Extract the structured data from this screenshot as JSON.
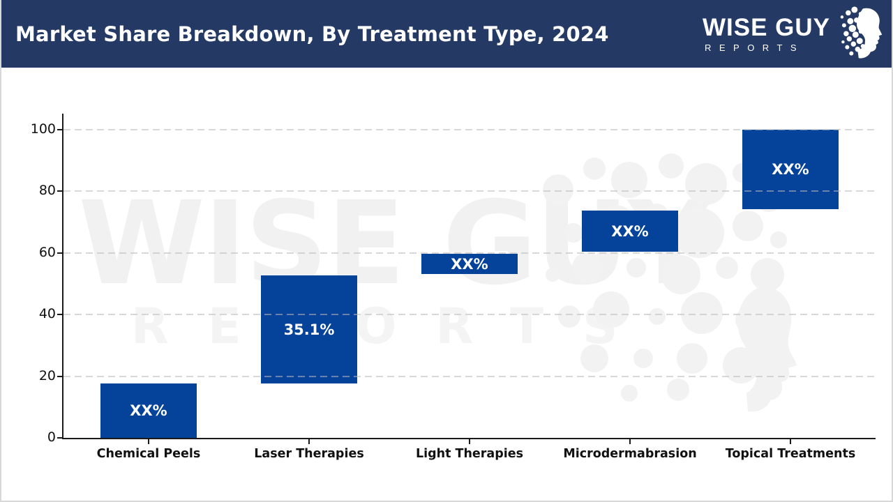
{
  "header": {
    "title": "Market Share Breakdown, By Treatment Type, 2024",
    "logo_line1": "WISE GUY",
    "logo_line2": "REPORTS"
  },
  "watermark": {
    "line1": "WISE GUY",
    "line2": "REPORTS"
  },
  "colors": {
    "header_bg": "#243a64",
    "bar": "#05439b",
    "axis": "#1a1a1a",
    "grid": "#d9d9d9",
    "watermark": "#f1f1f1",
    "bar_label": "#ffffff"
  },
  "chart_data": {
    "type": "bar",
    "subtype": "waterfall",
    "title": "Market Share Breakdown, By Treatment Type, 2024",
    "categories": [
      "Chemical Peels",
      "Laser Therapies",
      "Light Therapies",
      "Microdermabrasion",
      "Topical Treatments"
    ],
    "bars": [
      {
        "category": "Chemical Peels",
        "start": 0,
        "end": 17.6,
        "label": "XX%"
      },
      {
        "category": "Laser Therapies",
        "start": 17.6,
        "end": 52.7,
        "label": "35.1%"
      },
      {
        "category": "Light Therapies",
        "start": 53.1,
        "end": 59.7,
        "label": "XX%"
      },
      {
        "category": "Microdermabrasion",
        "start": 60.3,
        "end": 73.7,
        "label": "XX%"
      },
      {
        "category": "Topical Treatments",
        "start": 74.1,
        "end": 100,
        "label": "XX%"
      }
    ],
    "y_ticks": [
      0,
      20,
      40,
      60,
      80,
      100
    ],
    "ylim": [
      0,
      105
    ],
    "xlabel": "",
    "ylabel": "",
    "grid": "horizontal-dashed",
    "legend": "none",
    "bar_color": "#05439b"
  }
}
